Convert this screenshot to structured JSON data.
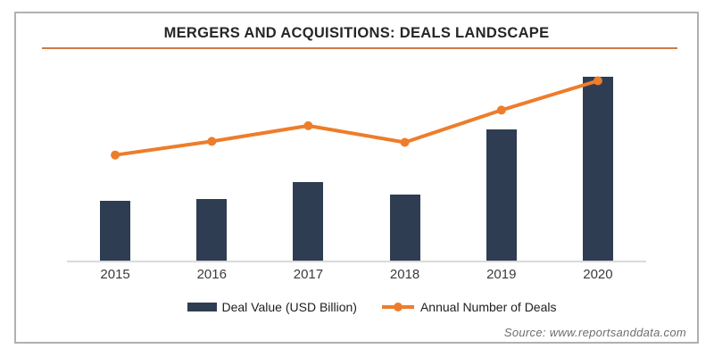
{
  "header": {
    "title": "MERGERS AND ACQUISITIONS: DEALS LANDSCAPE",
    "underline_color": "#cf7a45"
  },
  "chart_data": {
    "type": "combo-bar-line",
    "title": "MERGERS AND ACQUISITIONS: DEALS LANDSCAPE",
    "categories": [
      "2015",
      "2016",
      "2017",
      "2018",
      "2019",
      "2020"
    ],
    "series": [
      {
        "name": "Deal Value (USD Billion)",
        "type": "bar",
        "color": "#2e3d51",
        "values": [
          30.5,
          31.5,
          40,
          34,
          67,
          94
        ]
      },
      {
        "name": "Annual Number of Deals",
        "type": "line",
        "color": "#ed7d2b",
        "values": [
          54,
          61,
          69,
          60.5,
          77,
          92
        ]
      }
    ],
    "xlabel": "",
    "ylabel": "",
    "ylim": [
      0,
      100
    ],
    "y_axis_visible": false,
    "grid": false,
    "legend_position": "bottom",
    "axis_color": "#dadada",
    "tick_label_color": "#3b3b3b"
  },
  "source": {
    "text": "Source: www.reportsanddata.com",
    "color": "#6d6d6d"
  }
}
